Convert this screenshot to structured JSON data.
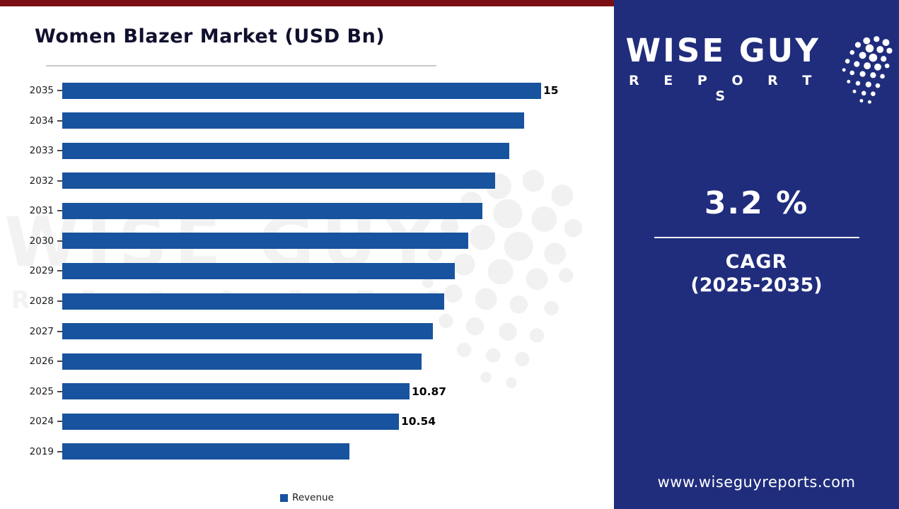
{
  "accents": {
    "top_strip_color": "#7a1013",
    "sidebar_background": "#202d7c",
    "bar_color": "#17539e"
  },
  "chart_data": {
    "type": "bar",
    "orientation": "horizontal",
    "title": "Women Blazer Market (USD Bn)",
    "categories": [
      "2035",
      "2034",
      "2033",
      "2032",
      "2031",
      "2030",
      "2029",
      "2028",
      "2027",
      "2026",
      "2025",
      "2024",
      "2019"
    ],
    "values": [
      15,
      14.45,
      14.0,
      13.55,
      13.15,
      12.7,
      12.3,
      11.95,
      11.6,
      11.25,
      10.87,
      10.54,
      9.0
    ],
    "value_labels": [
      "15",
      "",
      "",
      "",
      "",
      "",
      "",
      "",
      "",
      "",
      "10.87",
      "10.54",
      ""
    ],
    "xlim": [
      0,
      15.5
    ],
    "grid": false,
    "legend_position": "bottom-center",
    "legend": [
      {
        "label": "Revenue",
        "color": "#17539e"
      }
    ]
  },
  "watermark": {
    "line1": "WISE GUY",
    "line2": "R E P O R T S"
  },
  "sidebar": {
    "logo_line1": "WISE GUY",
    "logo_line2": "R E P O R T S",
    "cagr_value": "3.2 %",
    "cagr_label": "CAGR",
    "cagr_range": "(2025-2035)",
    "website": "www.wiseguyreports.com"
  }
}
